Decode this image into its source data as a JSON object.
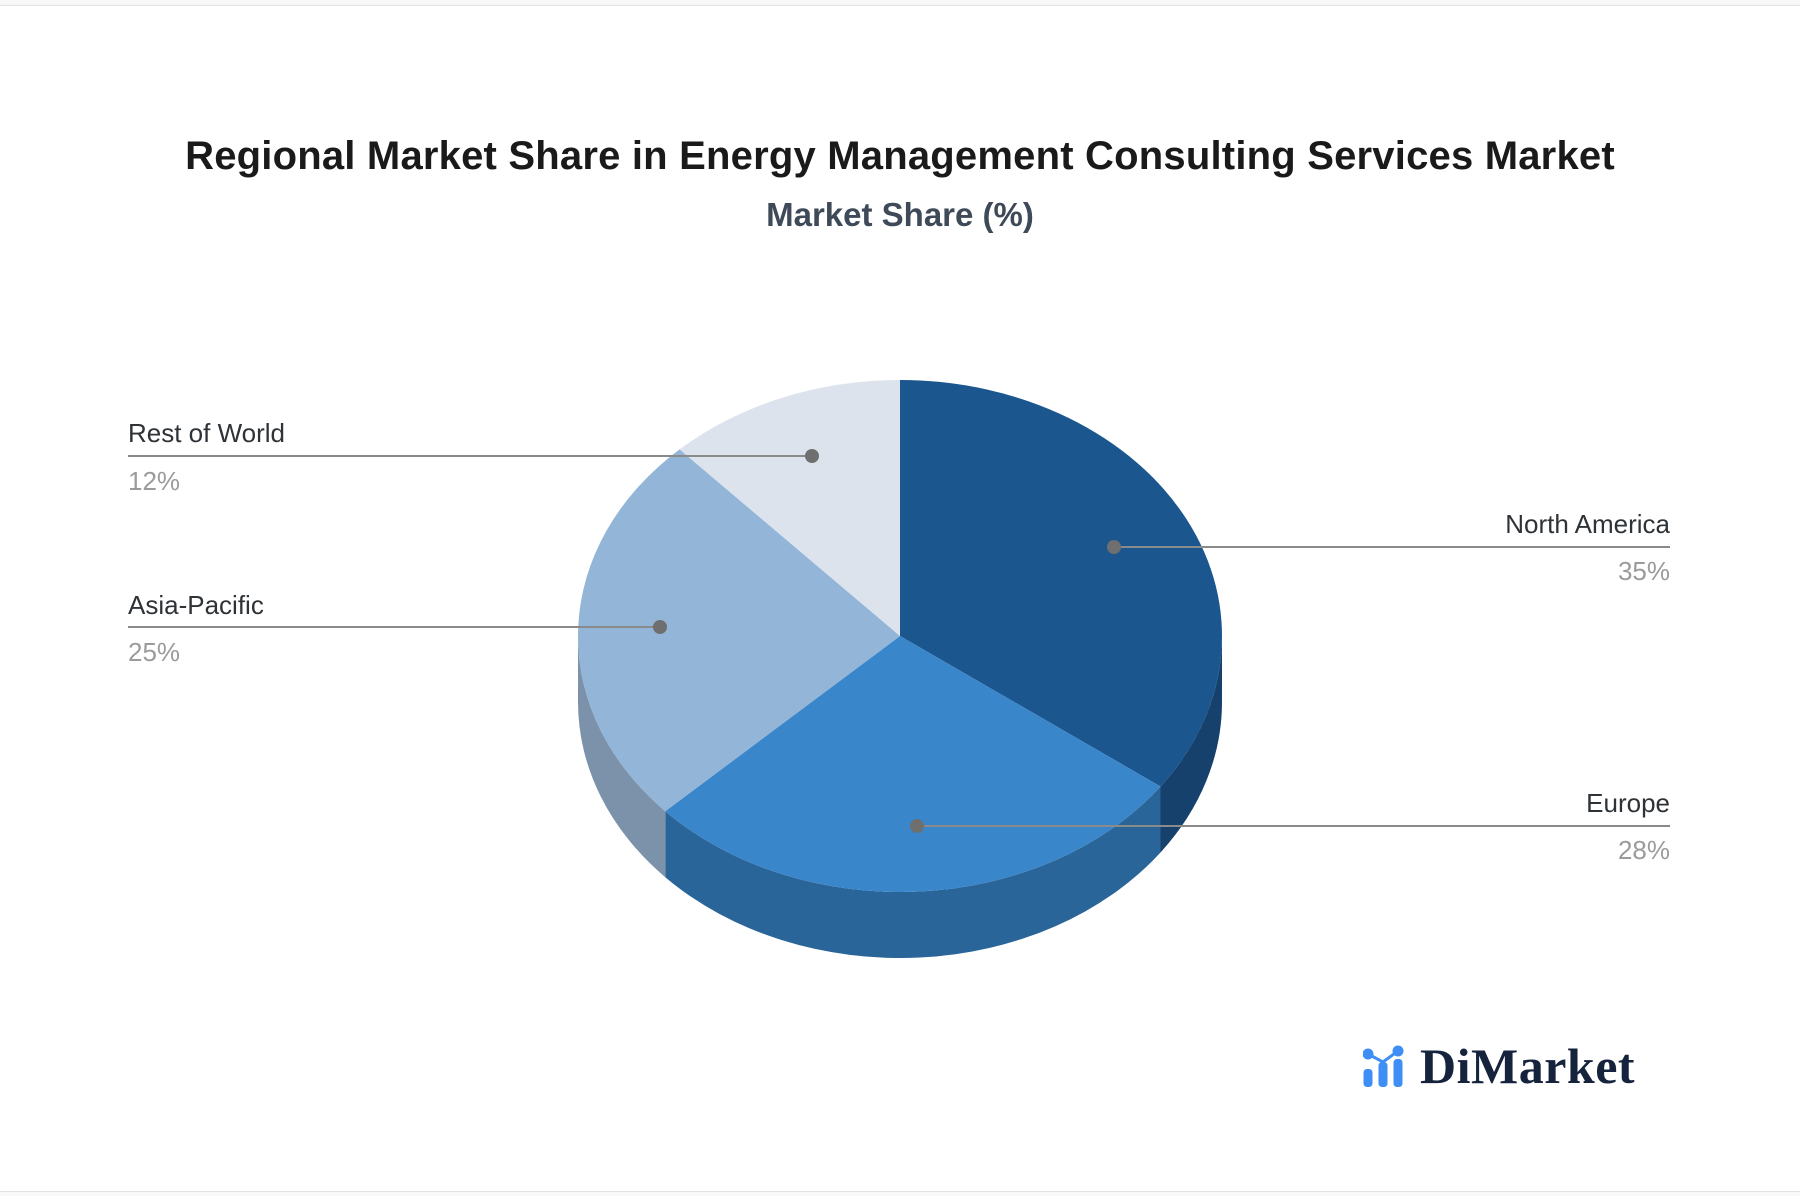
{
  "chart_data": {
    "type": "pie",
    "pie_style": "3d",
    "title": "Regional Market Share in Energy Management Consulting Services Market",
    "subtitle": "Market Share (%)",
    "unit": "%",
    "direction": "clockwise",
    "start_angle_deg": -90,
    "legend_position": "none",
    "label_style": "callout-leader-lines",
    "segments": [
      {
        "label": "North America",
        "value": 35,
        "display": "35%",
        "color": "#1B568F",
        "side_color": "#17416D"
      },
      {
        "label": "Europe",
        "value": 28,
        "display": "28%",
        "color": "#3A86CA",
        "side_color": "#2A6599"
      },
      {
        "label": "Asia-Pacific",
        "value": 25,
        "display": "25%",
        "color": "#92B5D8",
        "side_color": "#7B92AA"
      },
      {
        "label": "Rest of World",
        "value": 12,
        "display": "12%",
        "color": "#DDE3ED",
        "side_color": "#B9C4D4"
      }
    ]
  },
  "colors": {
    "title_text": "#1A1A1A",
    "subtitle_text": "#3F4A58",
    "label_text": "#2E3338",
    "percent_text": "#9B9B9B",
    "leader_line": "#8A8A8A",
    "marker_dot": "#6F6F6F",
    "background": "#FFFFFF",
    "logo_blue": "#3F8EF5",
    "logo_navy": "#16233C"
  },
  "branding": {
    "logo_text": "DiMarket",
    "logo_icon": "bar-chart-trend-icon"
  }
}
